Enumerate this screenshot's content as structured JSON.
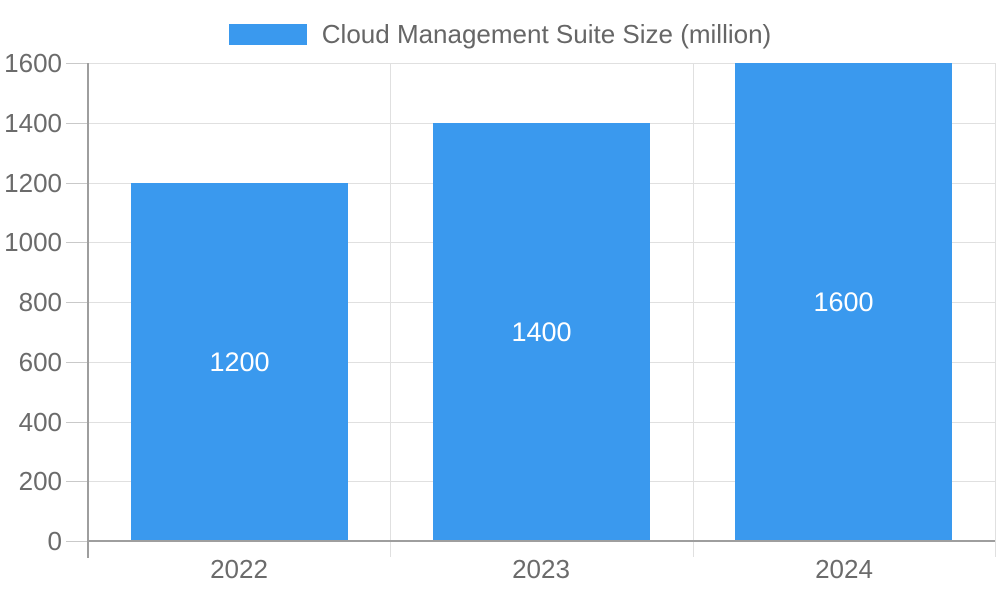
{
  "chart_data": {
    "type": "bar",
    "title": "Cloud Management Suite Size (million)",
    "legend": {
      "position": "top",
      "entries": [
        "Cloud Management Suite Size (million)"
      ]
    },
    "categories": [
      "2022",
      "2023",
      "2024"
    ],
    "series": [
      {
        "name": "Cloud Management Suite Size (million)",
        "values": [
          1200,
          1400,
          1600
        ]
      }
    ],
    "data_labels": [
      "1200",
      "1400",
      "1600"
    ],
    "xlabel": "",
    "ylabel": "",
    "ylim": [
      0,
      1600
    ],
    "y_ticks": [
      0,
      200,
      400,
      600,
      800,
      1000,
      1200,
      1400,
      1600
    ],
    "grid": true,
    "colors": {
      "bar": "#3a99ee",
      "data_label": "#ffffff",
      "axis_line": "#9e9e9e",
      "grid_line": "#e0e0e0",
      "tick_dash": "#c9c9c9",
      "axis_text": "#6b6b6b",
      "title_text": "#666666"
    }
  }
}
